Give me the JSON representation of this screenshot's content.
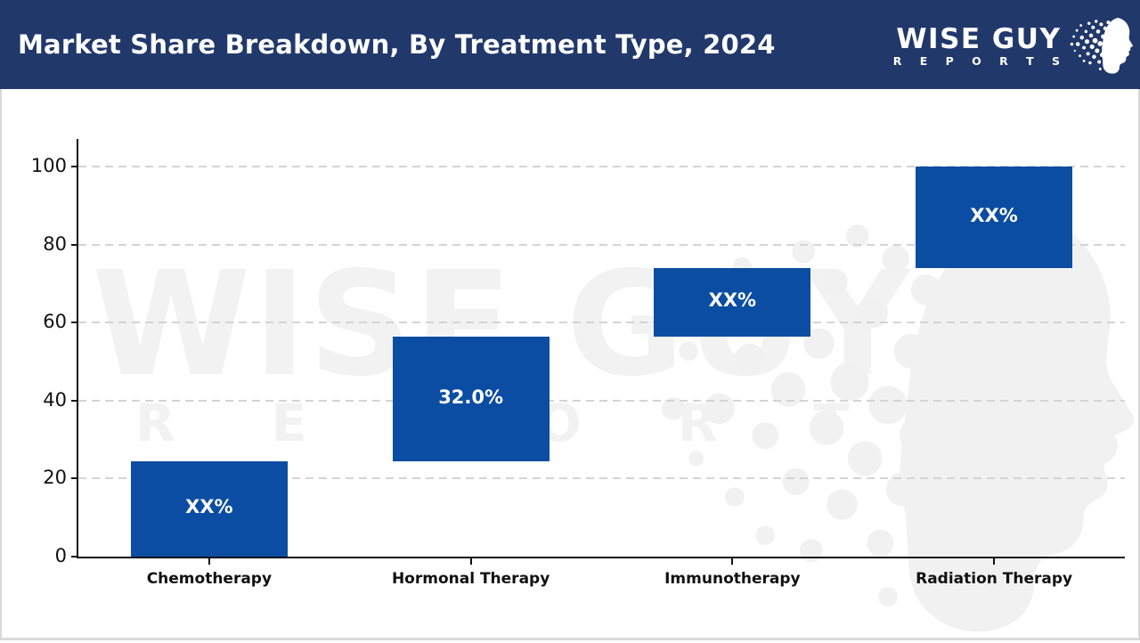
{
  "header": {
    "title": "Market Share Breakdown, By Treatment Type, 2024",
    "bg_color": "#21386b",
    "title_color": "#ffffff"
  },
  "logo": {
    "line1": "WISE GUY",
    "line2": "R E P O R T S",
    "head_icon": "dotted-face-profile"
  },
  "watermark": {
    "line1": "WISE GUY",
    "line2": "R E P O R T S",
    "head_icon": "dotted-face-profile",
    "color": "#f2f2f2"
  },
  "chart_data": {
    "type": "bar",
    "subtype": "waterfall",
    "categories": [
      "Chemotherapy",
      "Hormonal Therapy",
      "Immunotherapy",
      "Radiation Therapy"
    ],
    "series": [
      {
        "name": "Market Share",
        "base": [
          0,
          24.5,
          56.5,
          74
        ],
        "values": [
          24.5,
          32.0,
          17.5,
          26.0
        ]
      }
    ],
    "bar_labels": [
      "XX%",
      "32.0%",
      "XX%",
      "XX%"
    ],
    "yticks": [
      0,
      20,
      40,
      60,
      80,
      100
    ],
    "ylim": [
      0,
      107
    ],
    "grid": "horizontal-dashed",
    "legend": "none",
    "bar_color": "#0b4da2",
    "grid_color": "#d4d4d4",
    "axis_color": "#111111",
    "label_color": "#ffffff"
  }
}
